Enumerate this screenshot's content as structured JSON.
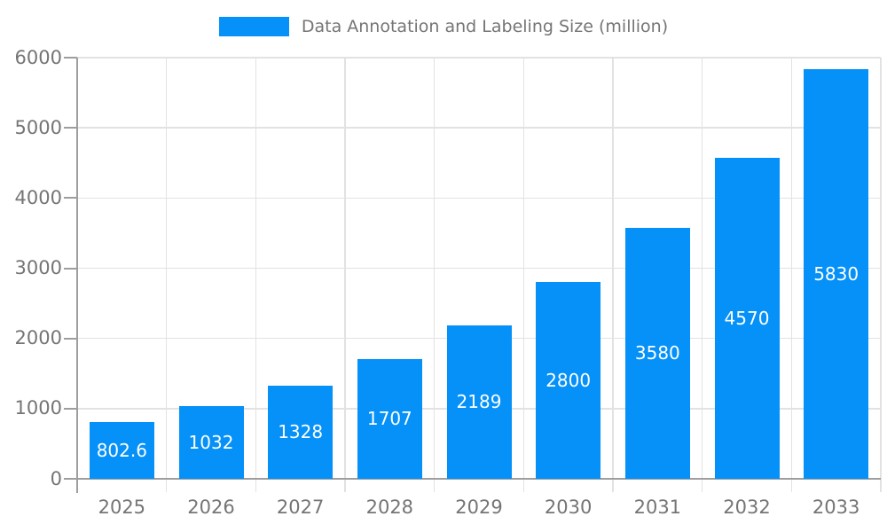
{
  "legend": {
    "label": "Data Annotation and Labeling Size (million)"
  },
  "chart_data": {
    "type": "bar",
    "title": "Data Annotation and Labeling Size (million)",
    "categories": [
      "2025",
      "2026",
      "2027",
      "2028",
      "2029",
      "2030",
      "2031",
      "2032",
      "2033"
    ],
    "values": [
      802.6,
      1032,
      1328,
      1707,
      2189,
      2800,
      3580,
      4570,
      5830
    ],
    "value_labels": [
      "802.6",
      "1032",
      "1328",
      "1707",
      "2189",
      "2800",
      "3580",
      "4570",
      "5830"
    ],
    "xlabel": "",
    "ylabel": "",
    "ylim": [
      0,
      6000
    ],
    "yticks": [
      0,
      1000,
      2000,
      3000,
      4000,
      5000,
      6000
    ],
    "grid": true,
    "legend_position": "top",
    "value_label_position": "inside-center",
    "colors": {
      "bar": "#0591f8",
      "text": "#757575",
      "value_text": "#ffffff",
      "grid": "#e2e2e2",
      "axis": "#9e9e9e",
      "background": "#ffffff"
    }
  }
}
